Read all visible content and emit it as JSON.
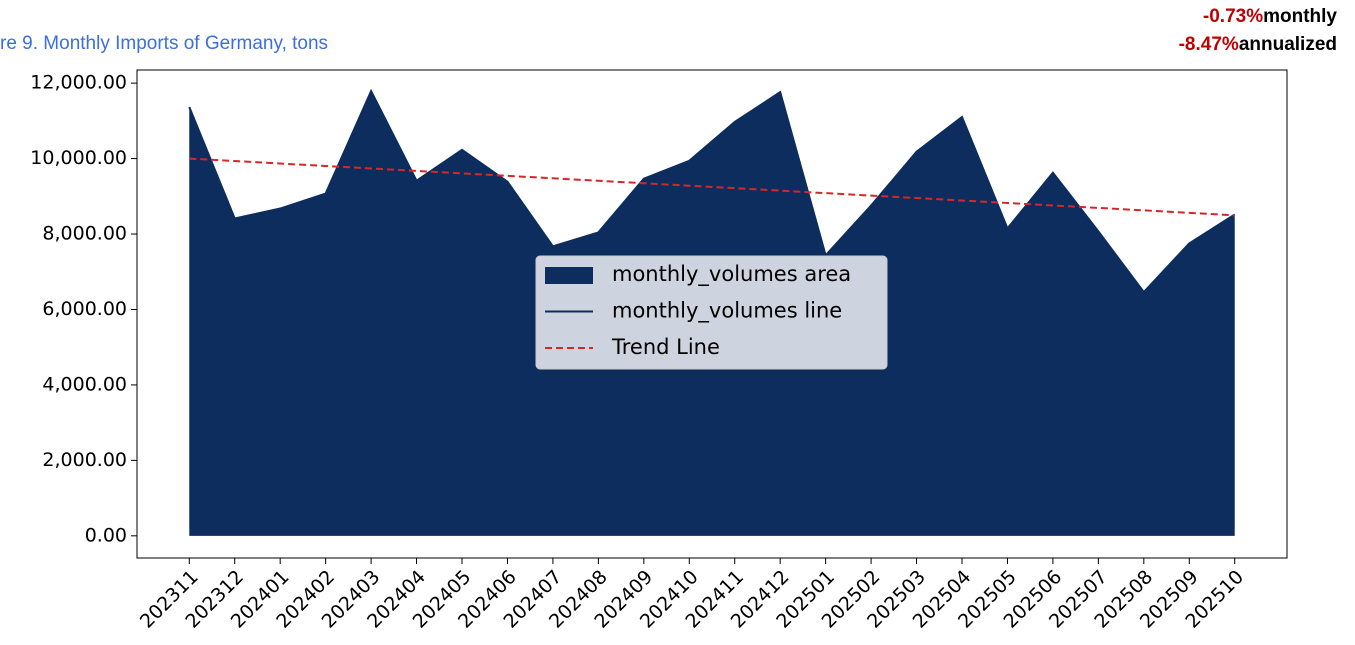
{
  "chart_data": {
    "type": "area",
    "title": "re 9. Monthly Imports of Germany, tons",
    "annotations": [
      {
        "value": "-0.73%",
        "text": "monthly"
      },
      {
        "value": "-8.47%",
        "text": "annualized"
      }
    ],
    "categories": [
      "202311",
      "202312",
      "202401",
      "202402",
      "202403",
      "202404",
      "202405",
      "202406",
      "202407",
      "202408",
      "202409",
      "202410",
      "202411",
      "202412",
      "202501",
      "202502",
      "202503",
      "202504",
      "202505",
      "202506",
      "202507",
      "202508",
      "202509",
      "202510"
    ],
    "series": [
      {
        "name": "monthly_volumes area",
        "color": "#0d2d5e",
        "values": [
          11366,
          8412,
          8676,
          9072,
          11788,
          9415,
          10232,
          9388,
          7674,
          8043,
          9467,
          9942,
          10971,
          11762,
          7437,
          8755,
          10180,
          11103,
          8149,
          9626,
          8070,
          6461,
          7753,
          8518
        ]
      },
      {
        "name": "monthly_volumes line",
        "color": "#0d2d5e",
        "values": [
          11366,
          8412,
          8676,
          9072,
          11788,
          9415,
          10232,
          9388,
          7674,
          8043,
          9467,
          9942,
          10971,
          11762,
          7437,
          8755,
          10180,
          11103,
          8149,
          9626,
          8070,
          6461,
          7753,
          8518
        ]
      },
      {
        "name": "Trend Line",
        "color": "#d62728",
        "dashed": true,
        "values": [
          10000,
          9935,
          9869,
          9804,
          9738,
          9673,
          9608,
          9542,
          9477,
          9411,
          9346,
          9281,
          9215,
          9150,
          9084,
          9019,
          8954,
          8888,
          8823,
          8757,
          8692,
          8627,
          8561,
          8496
        ]
      }
    ],
    "ylim": [
      -588,
      12348
    ],
    "yticks": [
      {
        "value": 0,
        "label": "0.00"
      },
      {
        "value": 2000,
        "label": "2,000.00"
      },
      {
        "value": 4000,
        "label": "4,000.00"
      },
      {
        "value": 6000,
        "label": "6,000.00"
      },
      {
        "value": 8000,
        "label": "8,000.00"
      },
      {
        "value": 10000,
        "label": "10,000.00"
      },
      {
        "value": 12000,
        "label": "12,000.00"
      }
    ],
    "legend": "center"
  }
}
